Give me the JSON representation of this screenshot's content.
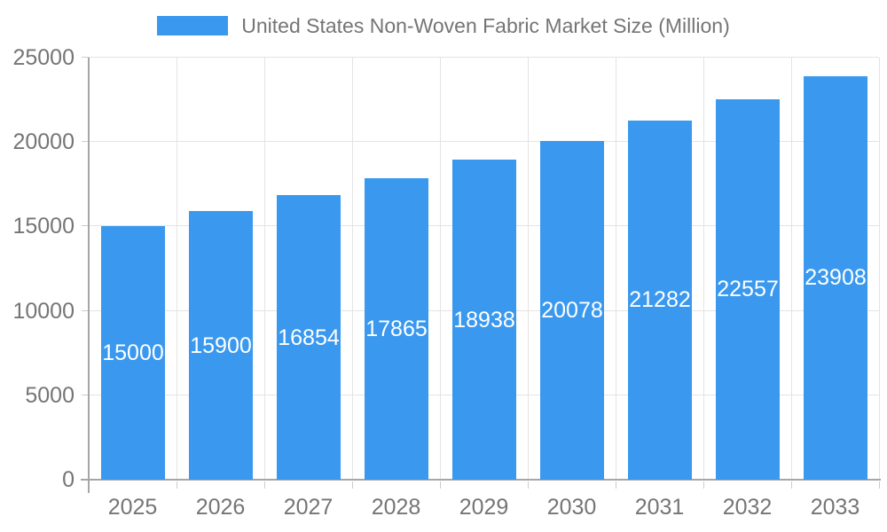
{
  "chart_data": {
    "type": "bar",
    "title": "United States Non-Woven Fabric Market Size (Million)",
    "legend_position": "top",
    "categories": [
      "2025",
      "2026",
      "2027",
      "2028",
      "2029",
      "2030",
      "2031",
      "2032",
      "2033"
    ],
    "series": [
      {
        "name": "United States Non-Woven Fabric Market Size (Million)",
        "values": [
          15000,
          15900,
          16854,
          17865,
          18938,
          20078,
          21282,
          22557,
          23908
        ]
      }
    ],
    "xlabel": "",
    "ylabel": "",
    "ylim": [
      0,
      25000
    ],
    "yticks": [
      0,
      5000,
      10000,
      15000,
      20000,
      25000
    ],
    "grid": true,
    "value_labels": "inside-center",
    "colors": {
      "bar": "#3A99EE",
      "bar_value_label": "#ffffff",
      "axis_text": "#757575",
      "legend_text": "#757575",
      "gridline": "#e3e3e3",
      "axis_line": "#a6a6a6",
      "tick_mark": "#cccccc",
      "background": "#ffffff"
    }
  }
}
